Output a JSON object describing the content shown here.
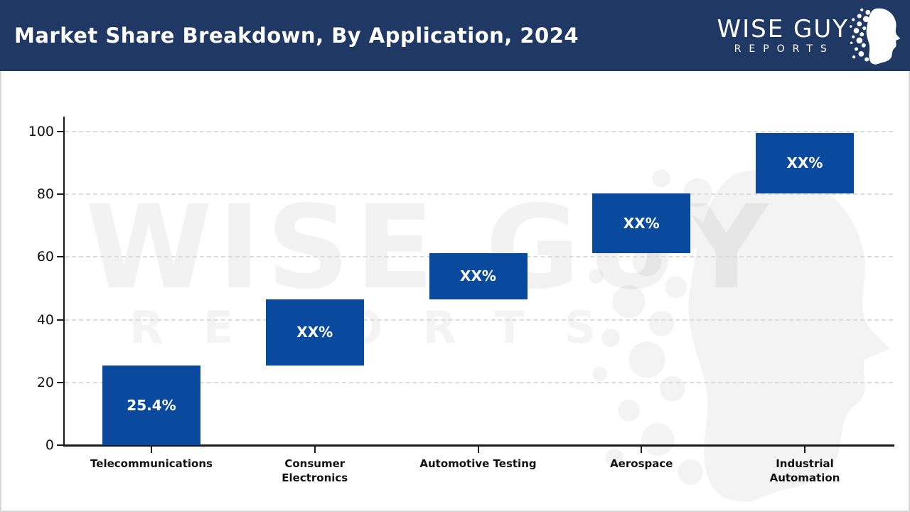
{
  "header": {
    "title": "Market Share Breakdown, By Application, 2024"
  },
  "logo": {
    "line1": "WISE GUY",
    "line2": "REPORTS"
  },
  "watermark": {
    "line1": "WISE GUY",
    "line2": "REPORTS"
  },
  "chart_data": {
    "type": "bar",
    "subtype": "waterfall",
    "title": "Market Share Breakdown, By Application, 2024",
    "categories": [
      "Telecommunications",
      "Consumer\nElectronics",
      "Automotive Testing",
      "Aerospace",
      "Industrial\nAutomation"
    ],
    "segments": [
      {
        "category": "Telecommunications",
        "start": 0,
        "end": 25.4
      },
      {
        "category": "Consumer Electronics",
        "start": 25.4,
        "end": 46.5
      },
      {
        "category": "Automotive Testing",
        "start": 46.5,
        "end": 61.3
      },
      {
        "category": "Aerospace",
        "start": 61.3,
        "end": 80.3
      },
      {
        "category": "Industrial Automation",
        "start": 80.3,
        "end": 99.6
      }
    ],
    "bar_labels": [
      "25.4%",
      "XX%",
      "XX%",
      "XX%",
      "XX%"
    ],
    "xlabel": "",
    "ylabel": "",
    "yticks": [
      0,
      20,
      40,
      60,
      80,
      100
    ],
    "ylim": [
      0,
      105
    ],
    "grid": "horizontal-dashed",
    "legend": "none",
    "bar_color": "#0a4a9e",
    "bar_label_color": "#ffffff",
    "header_color": "#1f3864",
    "gridline_color": "#dcdcdc",
    "axis_color": "#1a1a1a"
  }
}
